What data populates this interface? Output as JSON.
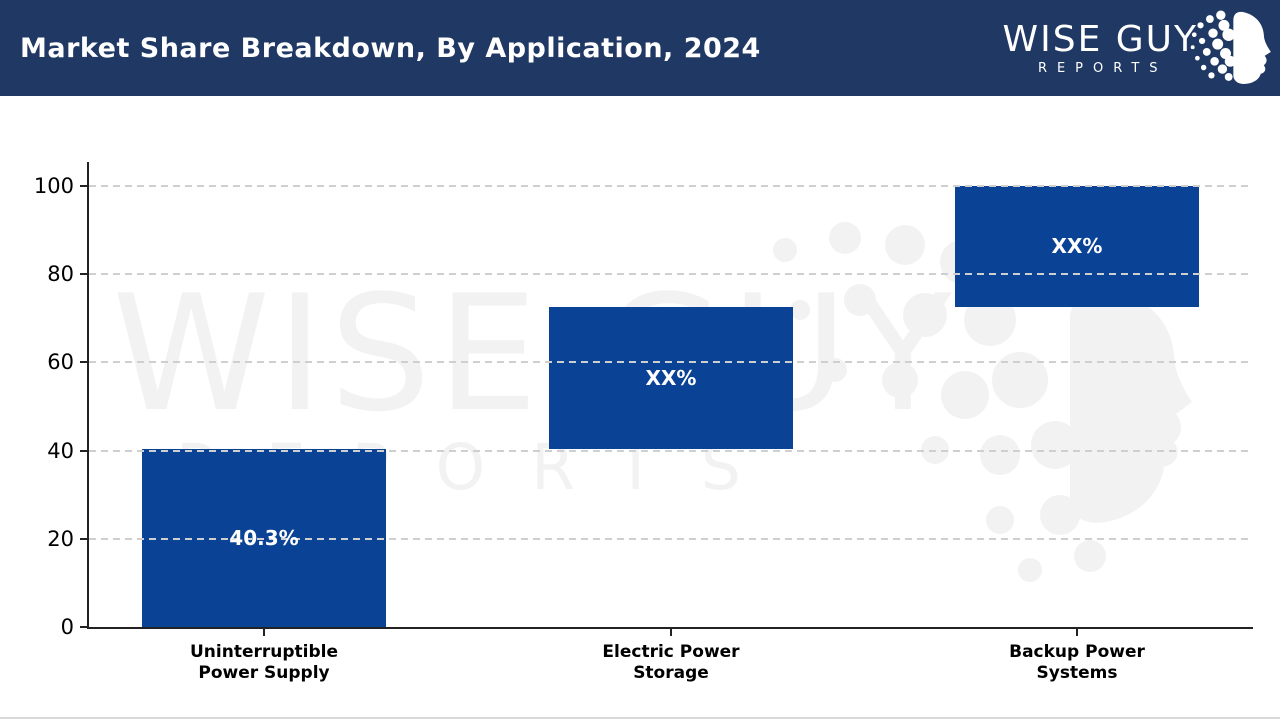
{
  "header": {
    "title": "Market Share Breakdown, By Application, 2024",
    "logo_line1": "WISE GUY",
    "logo_line2": "REPORTS"
  },
  "watermark": {
    "line1": "WISE GUY",
    "line2": "REPORTS"
  },
  "chart_data": {
    "type": "bar",
    "subtype": "floating-segment-bars (stacked waterfall to 100%)",
    "title": "Market Share Breakdown, By Application, 2024",
    "categories": [
      {
        "line1": "Uninterruptible",
        "line2": "Power Supply"
      },
      {
        "line1": "Electric Power",
        "line2": "Storage"
      },
      {
        "line1": "Backup Power",
        "line2": "Systems"
      }
    ],
    "segments": [
      {
        "start": 0,
        "end": 40.3,
        "label": "40.3%"
      },
      {
        "start": 40.3,
        "end": 72.6,
        "label": "XX%"
      },
      {
        "start": 72.6,
        "end": 100,
        "label": "XX%"
      }
    ],
    "yticks": [
      0,
      20,
      40,
      60,
      80,
      100
    ],
    "ylim": [
      0,
      100
    ],
    "xlabel": "",
    "ylabel": "",
    "legend": null,
    "grid": {
      "axis": "y",
      "style": "dashed",
      "color": "#cfcfcf"
    },
    "bar_color": "#0a4296",
    "bar_label_color": "#ffffff"
  },
  "colors": {
    "header_bg": "#1f3864",
    "background": "#ffffff",
    "axis": "#222222",
    "watermark": "#f2f2f2"
  }
}
